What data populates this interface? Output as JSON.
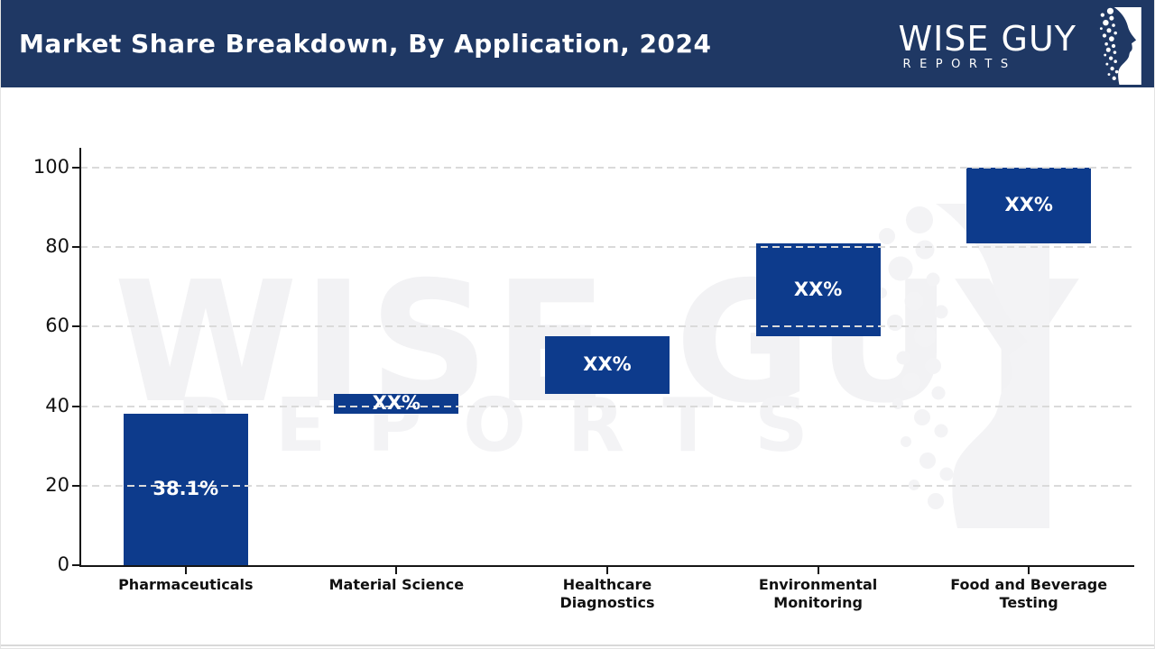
{
  "header": {
    "title": "Market Share Breakdown, By Application, 2024"
  },
  "logo": {
    "wordmark": "WISE GUY",
    "subtext": "REPORTS",
    "icon": "head-profile-dots-icon"
  },
  "watermark": {
    "line1": "WISE GUY",
    "line2": "REPORTS",
    "icon": "head-profile-dots-watermark-icon"
  },
  "chart_data": {
    "type": "bar",
    "subtype": "waterfall",
    "title": "Market Share Breakdown, By Application, 2024",
    "categories": [
      "Pharmaceuticals",
      "Material Science",
      "Healthcare Diagnostics",
      "Environmental Monitoring",
      "Food and Beverage Testing"
    ],
    "category_lines": [
      [
        "Pharmaceuticals"
      ],
      [
        "Material Science"
      ],
      [
        "Healthcare",
        "Diagnostics"
      ],
      [
        "Environmental",
        "Monitoring"
      ],
      [
        "Food and Beverage",
        "Testing"
      ]
    ],
    "segments": [
      {
        "category": "Pharmaceuticals",
        "start": 0,
        "end": 38.1,
        "label": "38.1%"
      },
      {
        "category": "Material Science",
        "start": 38.1,
        "end": 43,
        "label": "XX%"
      },
      {
        "category": "Healthcare Diagnostics",
        "start": 43,
        "end": 57.5,
        "label": "XX%"
      },
      {
        "category": "Environmental Monitoring",
        "start": 57.5,
        "end": 81,
        "label": "XX%"
      },
      {
        "category": "Food and Beverage Testing",
        "start": 81,
        "end": 100,
        "label": "XX%"
      }
    ],
    "ylim": [
      0,
      100
    ],
    "yticks": [
      0,
      20,
      40,
      60,
      80,
      100
    ],
    "xlabel": "",
    "ylabel": "",
    "grid": "horizontal-dashed",
    "legend": "none",
    "bar_color": "#0d3b8c",
    "bar_label_color": "#ffffff"
  },
  "colors": {
    "header_bg": "#1f3864",
    "accent_bar": "#0d3b8c",
    "axis": "#151515",
    "gridline": "#dadada",
    "watermark": "#f2f2f4"
  }
}
